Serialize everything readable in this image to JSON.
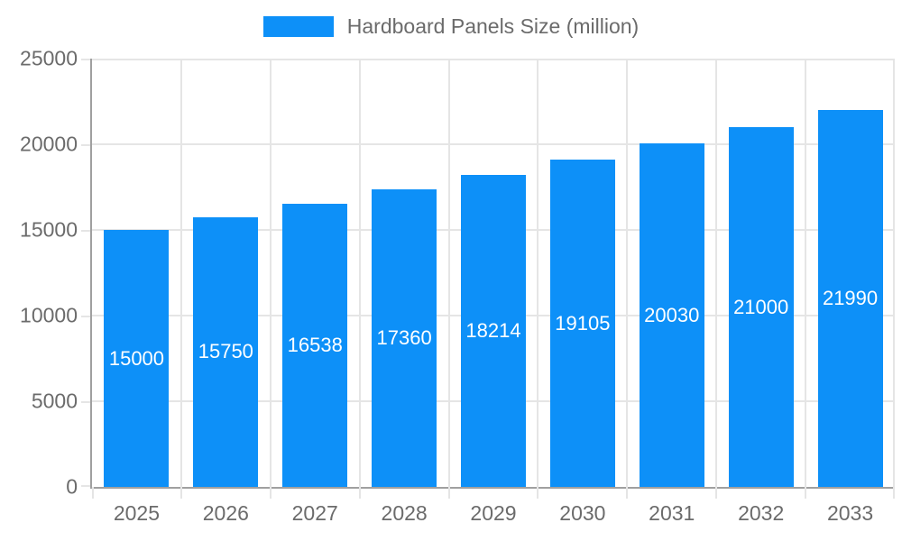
{
  "chart_data": {
    "type": "bar",
    "legend": "Hardboard Panels Size (million)",
    "legend_position": "top",
    "categories": [
      "2025",
      "2026",
      "2027",
      "2028",
      "2029",
      "2030",
      "2031",
      "2032",
      "2033"
    ],
    "values": [
      15000,
      15750,
      16538,
      17360,
      18214,
      19105,
      20030,
      21000,
      21990
    ],
    "title": "",
    "xlabel": "",
    "ylabel": "",
    "ylim": [
      0,
      25000
    ],
    "yticks": [
      0,
      5000,
      10000,
      15000,
      20000,
      25000
    ],
    "grid": true,
    "value_labels_inside_bars": true
  },
  "colors": {
    "bar": "#0d90f8",
    "grid": "#e5e5e5",
    "axis": "#a0a0a0",
    "text": "#6b6b6b",
    "value_text": "#ffffff"
  }
}
